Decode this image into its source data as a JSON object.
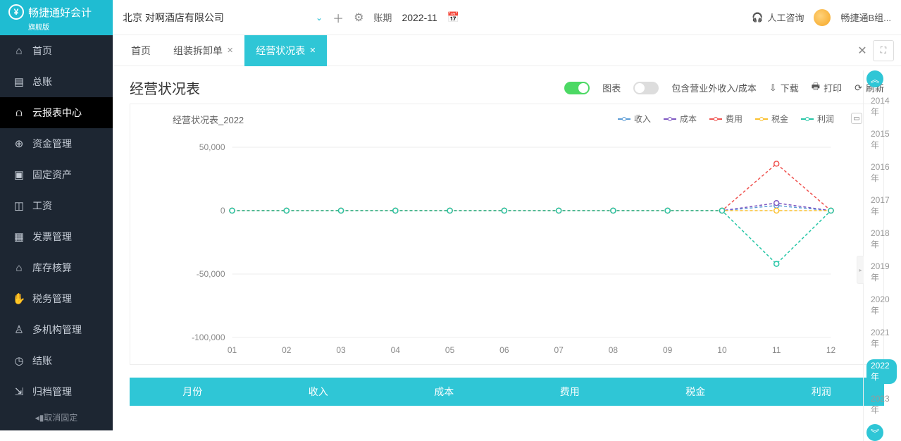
{
  "brand": {
    "name": "畅捷通好会计",
    "edition": "旗舰版"
  },
  "company": "北京 对啊酒店有限公司",
  "period": {
    "label": "账期",
    "value": "2022-11"
  },
  "consult": "人工咨询",
  "user": "畅捷通B组...",
  "sidebar": {
    "items": [
      {
        "icon": "⌂",
        "label": "首页"
      },
      {
        "icon": "▤",
        "label": "总账"
      },
      {
        "icon": "⩍",
        "label": "云报表中心"
      },
      {
        "icon": "⊕",
        "label": "资金管理"
      },
      {
        "icon": "▣",
        "label": "固定资产"
      },
      {
        "icon": "◫",
        "label": "工资"
      },
      {
        "icon": "▦",
        "label": "发票管理"
      },
      {
        "icon": "⌂",
        "label": "库存核算"
      },
      {
        "icon": "✋",
        "label": "税务管理"
      },
      {
        "icon": "♙",
        "label": "多机构管理"
      },
      {
        "icon": "◷",
        "label": "结账"
      },
      {
        "icon": "⇲",
        "label": "归档管理"
      }
    ],
    "unpin": "◂▮取消固定"
  },
  "tabs": [
    {
      "label": "首页",
      "closable": false
    },
    {
      "label": "组装拆卸单",
      "closable": true
    },
    {
      "label": "经营状况表",
      "closable": true,
      "active": true
    }
  ],
  "page": {
    "title": "经营状况表",
    "toggle_chart": "图表",
    "toggle_extra": "包含营业外收入/成本",
    "actions": {
      "download": "下载",
      "print": "打印",
      "refresh": "刷新"
    }
  },
  "chart": {
    "title": "经营状况表_2022",
    "type": "line",
    "x_categories": [
      "01",
      "02",
      "03",
      "04",
      "05",
      "06",
      "07",
      "08",
      "09",
      "10",
      "11",
      "12"
    ],
    "ylim": [
      -100000,
      50000
    ],
    "yticks": [
      50000,
      0,
      -50000,
      -100000
    ],
    "ytick_labels": [
      "50,000",
      "0",
      "-50,000",
      "-100,000"
    ],
    "grid_color": "#eeeeee",
    "background": "#ffffff",
    "series": [
      {
        "name": "收入",
        "color": "#5b9bd5",
        "dash": true,
        "data": [
          0,
          0,
          0,
          0,
          0,
          0,
          0,
          0,
          0,
          0,
          4000,
          0
        ]
      },
      {
        "name": "成本",
        "color": "#7e57c2",
        "dash": true,
        "data": [
          0,
          0,
          0,
          0,
          0,
          0,
          0,
          0,
          0,
          0,
          6000,
          0
        ]
      },
      {
        "name": "费用",
        "color": "#ef5350",
        "dash": true,
        "data": [
          0,
          0,
          0,
          0,
          0,
          0,
          0,
          0,
          0,
          0,
          37000,
          0
        ]
      },
      {
        "name": "税金",
        "color": "#fbc02d",
        "dash": true,
        "data": [
          0,
          0,
          0,
          0,
          0,
          0,
          0,
          0,
          0,
          0,
          0,
          0
        ]
      },
      {
        "name": "利润",
        "color": "#26c6a6",
        "dash": true,
        "data": [
          0,
          0,
          0,
          0,
          0,
          0,
          0,
          0,
          0,
          0,
          -42000,
          0
        ]
      }
    ]
  },
  "table": {
    "columns": [
      "月份",
      "收入",
      "成本",
      "费用",
      "税金",
      "利润"
    ]
  },
  "years": [
    "2014年",
    "2015年",
    "2016年",
    "2017年",
    "2018年",
    "2019年",
    "2020年",
    "2021年",
    "2022年",
    "2023年"
  ],
  "active_year": "2022年"
}
